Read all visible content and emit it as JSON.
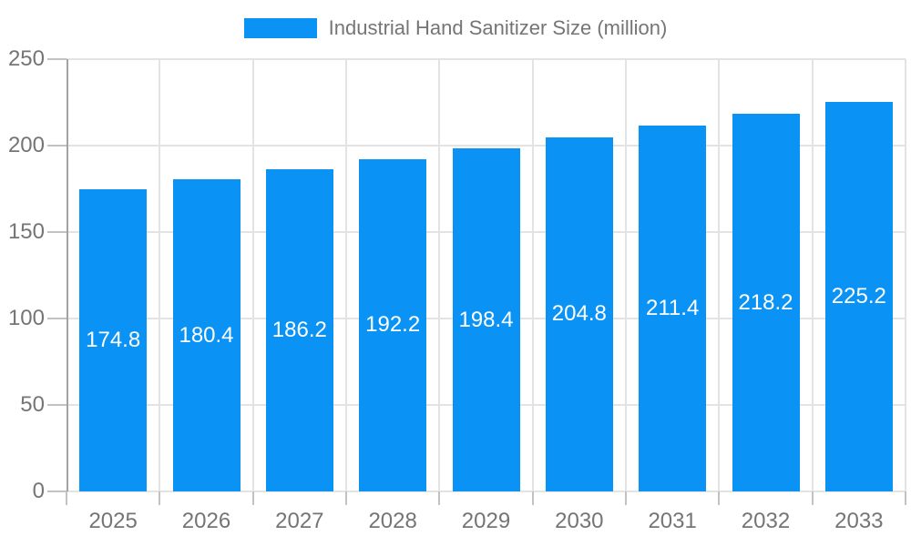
{
  "legend": {
    "label": "Industrial Hand Sanitizer Size (million)"
  },
  "colors": {
    "bar": "#0a93f5",
    "axis_text": "#757575",
    "bar_label_text": "#ffffff",
    "grid": "#e3e3e3",
    "tick": "#c2c2c2",
    "axis_line": "#a3a3a3",
    "background": "#ffffff"
  },
  "chart_data": {
    "type": "bar",
    "title": "Industrial Hand Sanitizer Size (million)",
    "series_name": "Industrial Hand Sanitizer Size (million)",
    "categories": [
      "2025",
      "2026",
      "2027",
      "2028",
      "2029",
      "2030",
      "2031",
      "2032",
      "2033"
    ],
    "values": [
      174.8,
      180.4,
      186.2,
      192.2,
      198.4,
      204.8,
      211.4,
      218.2,
      225.2
    ],
    "xlabel": "",
    "ylabel": "",
    "ylim": [
      0,
      250
    ],
    "yticks": [
      0,
      50,
      100,
      150,
      200,
      250
    ],
    "grid": true,
    "legend_position": "top",
    "value_label_position": "inside-middle",
    "value_label_color": "#ffffff"
  }
}
